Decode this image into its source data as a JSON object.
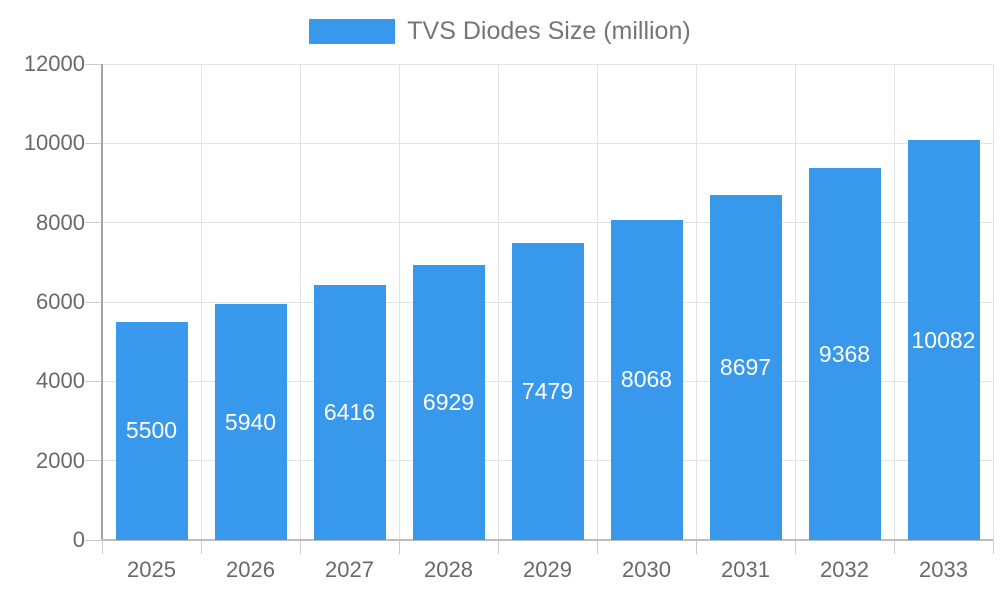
{
  "legend": {
    "label": "TVS Diodes Size (million)"
  },
  "chart_data": {
    "type": "bar",
    "title": "TVS Diodes Size (million)",
    "categories": [
      "2025",
      "2026",
      "2027",
      "2028",
      "2029",
      "2030",
      "2031",
      "2032",
      "2033"
    ],
    "values": [
      5500,
      5940,
      6416,
      6929,
      7479,
      8068,
      8697,
      9368,
      10082
    ],
    "series": [
      {
        "name": "TVS Diodes Size (million)",
        "values": [
          5500,
          5940,
          6416,
          6929,
          7479,
          8068,
          8697,
          9368,
          10082
        ]
      }
    ],
    "xlabel": "",
    "ylabel": "",
    "ylim": [
      0,
      12000
    ],
    "ytick_step": 2000,
    "ytick_labels": [
      "0",
      "2000",
      "4000",
      "6000",
      "8000",
      "10000",
      "12000"
    ],
    "grid": true,
    "legend_position": "top-center",
    "value_labels": "inside-center",
    "colors": {
      "bar": "#3898EC",
      "bar_value_label": "#ffffff",
      "axis_label": "#696969",
      "legend_text": "#757575",
      "gridline": "#e3e3e3",
      "tick": "#cccccc",
      "y_axis_line": "#a3a3a3",
      "x_axis_line": "#bdbdbd",
      "background": "#ffffff"
    }
  }
}
